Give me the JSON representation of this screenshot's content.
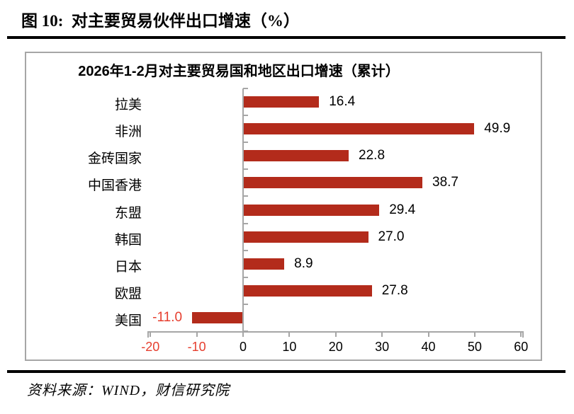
{
  "header": {
    "title": "图 10:  对主要贸易伙伴出口增速（%）"
  },
  "chart_data": {
    "type": "bar",
    "orientation": "horizontal",
    "title": "2026年1-2月对主要贸易国和地区出口增速（累计）",
    "categories": [
      "拉美",
      "非洲",
      "金砖国家",
      "中国香港",
      "东盟",
      "韩国",
      "日本",
      "欧盟",
      "美国"
    ],
    "values": [
      16.4,
      49.9,
      22.8,
      38.7,
      29.4,
      27.0,
      8.9,
      27.8,
      -11.0
    ],
    "xlim": [
      -20,
      60
    ],
    "x_ticks": [
      -20,
      -10,
      0,
      10,
      20,
      30,
      40,
      50,
      60
    ],
    "grid": false,
    "legend": false,
    "bar_color": "#b32b1b",
    "negative_label_color": "#e63e2e",
    "tick_label_color": "#000000",
    "axis_color": "#a6a6a6"
  },
  "source": {
    "text": "资料来源：WIND，财信研究院"
  }
}
